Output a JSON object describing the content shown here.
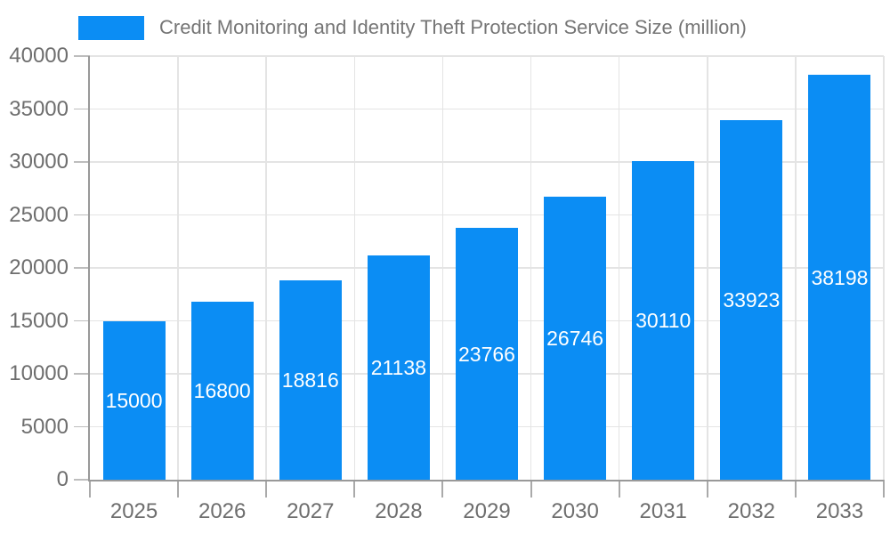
{
  "chart_data": {
    "type": "bar",
    "title": "Credit Monitoring and Identity Theft Protection Service Size (million)",
    "categories": [
      "2025",
      "2026",
      "2027",
      "2028",
      "2029",
      "2030",
      "2031",
      "2032",
      "2033"
    ],
    "values": [
      15000,
      16800,
      18816,
      21138,
      23766,
      26746,
      30110,
      33923,
      38198
    ],
    "series_name": "Credit Monitoring and Identity Theft Protection Service Size (million)",
    "xlabel": "",
    "ylabel": "",
    "ylim": [
      0,
      40000
    ],
    "ytick_step": 5000,
    "ytick_labels": [
      "0",
      "5000",
      "10000",
      "15000",
      "20000",
      "25000",
      "30000",
      "35000",
      "40000"
    ],
    "grid": "horizontal and vertical gridlines on",
    "legend_position": "top-left",
    "bar_value_labels": "white, centered inside bars",
    "colors": {
      "bar": "#0b8df4",
      "bar_label_text": "#ffffff",
      "axis_text": "#6e6e6e",
      "title_text": "#757575",
      "gridline": "#e4e4e4",
      "axis_line": "#999999",
      "background": "#ffffff"
    }
  }
}
